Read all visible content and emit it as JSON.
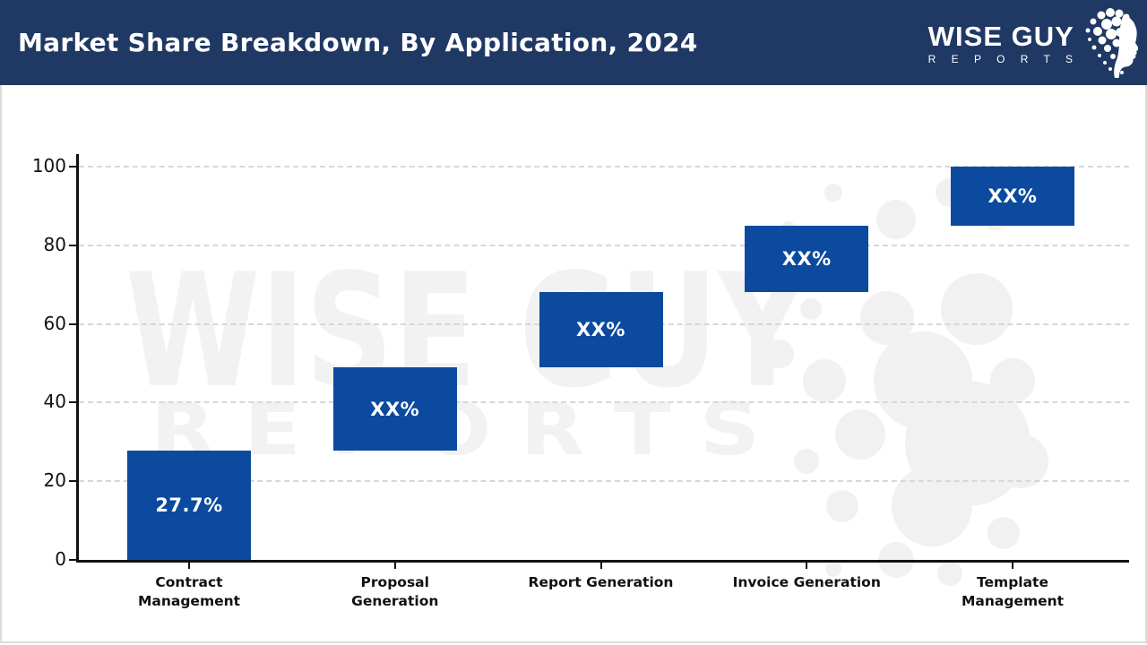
{
  "header": {
    "title": "Market Share Breakdown, By Application, 2024",
    "bg_color": "#1f3864",
    "logo": {
      "wordmark": "WISE GUY",
      "subtext": "R E P O R T S"
    }
  },
  "watermark": {
    "line1": "WISE GUY",
    "line2": "R E P O R T S"
  },
  "chart_data": {
    "type": "bar",
    "variant": "floating-waterfall",
    "title": "Market Share Breakdown, By Application, 2024",
    "xlabel": "",
    "ylabel": "",
    "ylim": [
      0,
      100
    ],
    "yticks": [
      0,
      20,
      40,
      60,
      80,
      100
    ],
    "grid": {
      "horizontal": true,
      "style": "dashed",
      "color": "#d7d7d7"
    },
    "legend": "none",
    "bar_color": "#0b4a9e",
    "value_label_color": "#ffffff",
    "categories": [
      "Contract Management",
      "Proposal Generation",
      "Report Generation",
      "Invoice Generation",
      "Template Management"
    ],
    "category_tick_lines": [
      [
        "Contract",
        "Management"
      ],
      [
        "Proposal",
        "Generation"
      ],
      [
        "Report Generation"
      ],
      [
        "Invoice Generation"
      ],
      [
        "Template",
        "Management"
      ]
    ],
    "segments": [
      {
        "category": "Contract Management",
        "start": 0,
        "end": 27.7,
        "label": "27.7%"
      },
      {
        "category": "Proposal Generation",
        "start": 27.7,
        "end": 49,
        "label": "XX%"
      },
      {
        "category": "Report Generation",
        "start": 49,
        "end": 68,
        "label": "XX%"
      },
      {
        "category": "Invoice Generation",
        "start": 68,
        "end": 85,
        "label": "XX%"
      },
      {
        "category": "Template Management",
        "start": 85,
        "end": 100,
        "label": "XX%"
      }
    ]
  }
}
